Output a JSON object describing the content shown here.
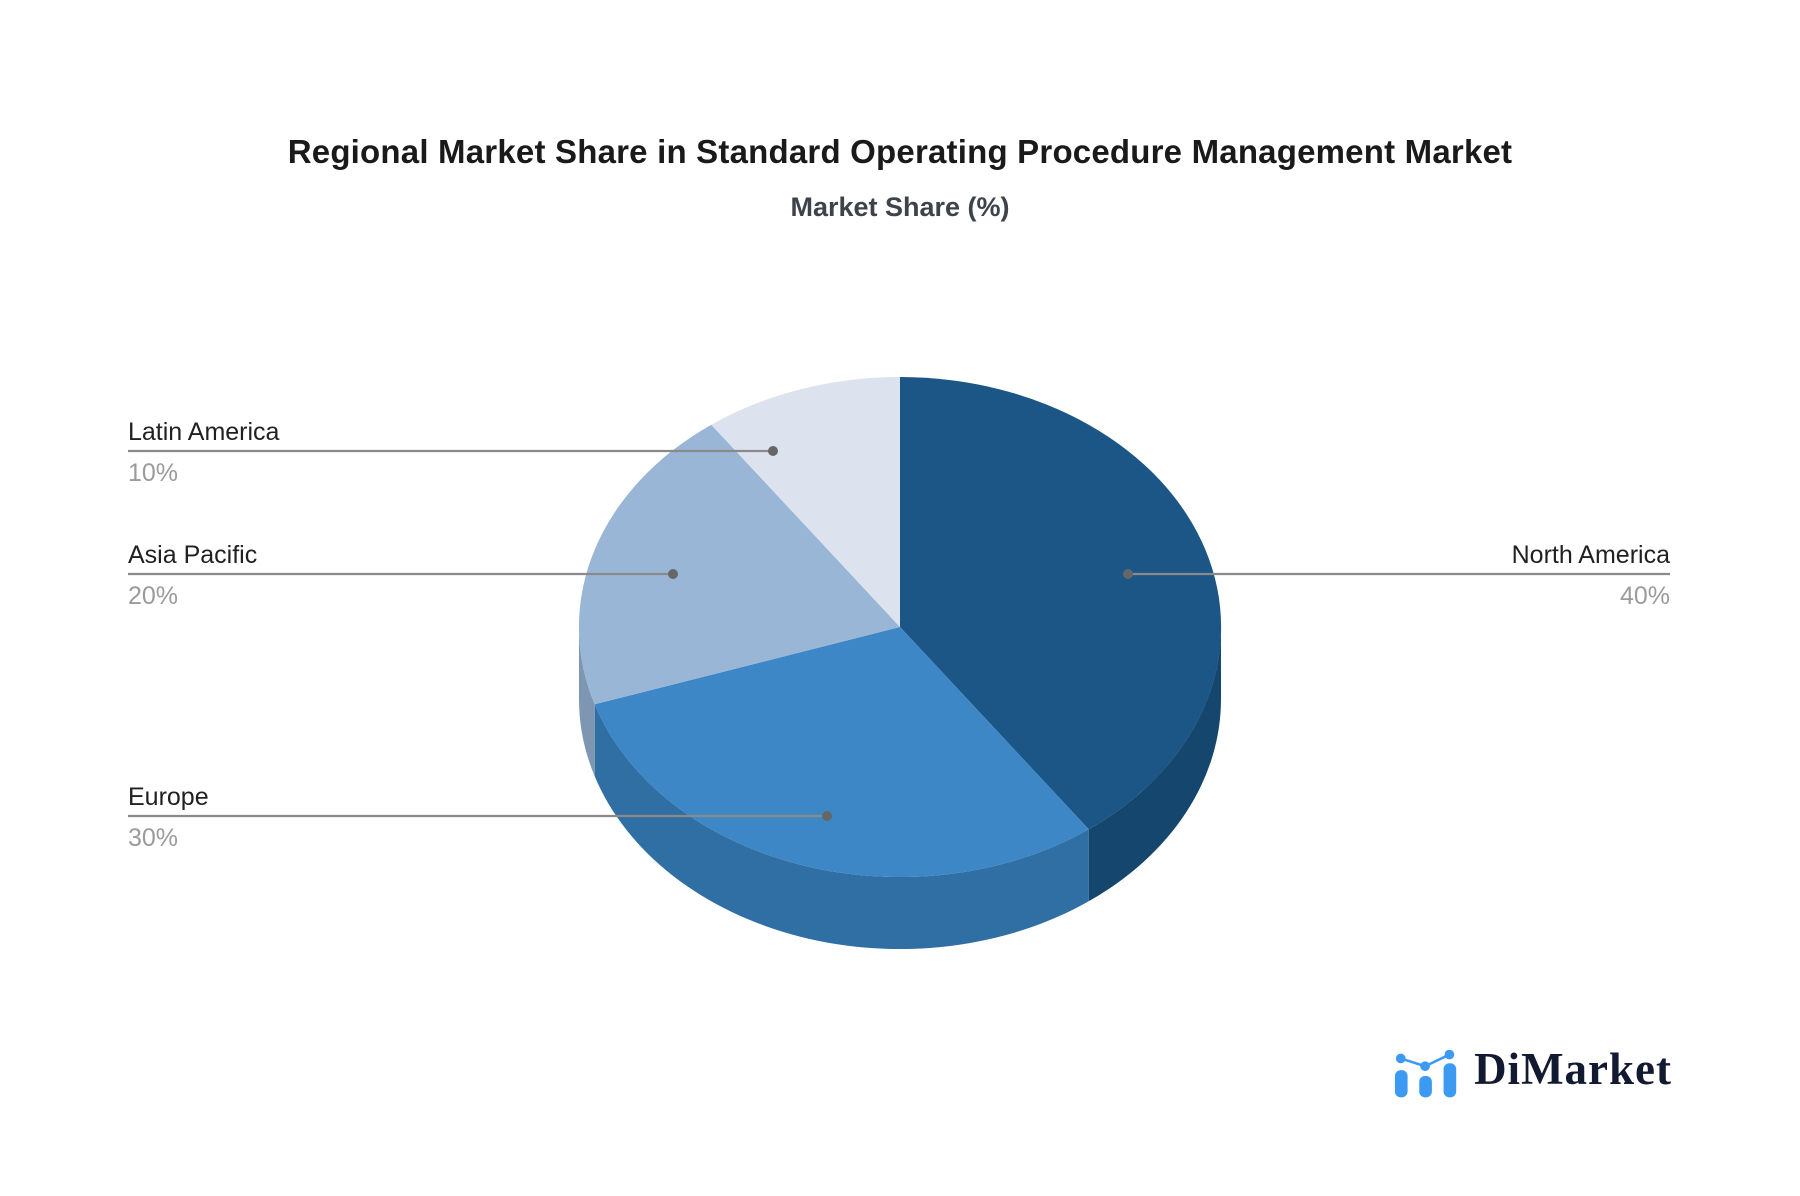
{
  "header": {
    "title": "Regional Market Share in Standard Operating Procedure Management Market",
    "subtitle": "Market Share (%)"
  },
  "chart_data": {
    "type": "pie",
    "style": "3d",
    "title": "Regional Market Share in Standard Operating Procedure Management Market",
    "subtitle": "Market Share (%)",
    "unit": "%",
    "start_angle": "top",
    "direction": "clockwise",
    "legend": "none",
    "slices": [
      {
        "label": "North America",
        "value": 40,
        "display": "40%",
        "color": "#1B5687",
        "side_color": "#15476E"
      },
      {
        "label": "Europe",
        "value": 30,
        "display": "30%",
        "color": "#3D87C7",
        "side_color": "#2F6FA4"
      },
      {
        "label": "Asia Pacific",
        "value": 20,
        "display": "20%",
        "color": "#9AB6D7",
        "side_color": "#7E96B1"
      },
      {
        "label": "Latin America",
        "value": 10,
        "display": "10%",
        "color": "#DDE3EE",
        "side_color": "#C6CFDE"
      }
    ]
  },
  "colors": {
    "leader_line": "#8a8a8a",
    "dot": "#666666",
    "label_text": "#212121",
    "value_text": "#9b9b9b",
    "title": "#1a1a1a",
    "subtitle": "#3d424b"
  },
  "branding": {
    "logo_text": "DiMarket",
    "logo_icon": "bar-line-chart-icon",
    "icon_color": "#3D9AF3",
    "text_color": "#111a30"
  }
}
